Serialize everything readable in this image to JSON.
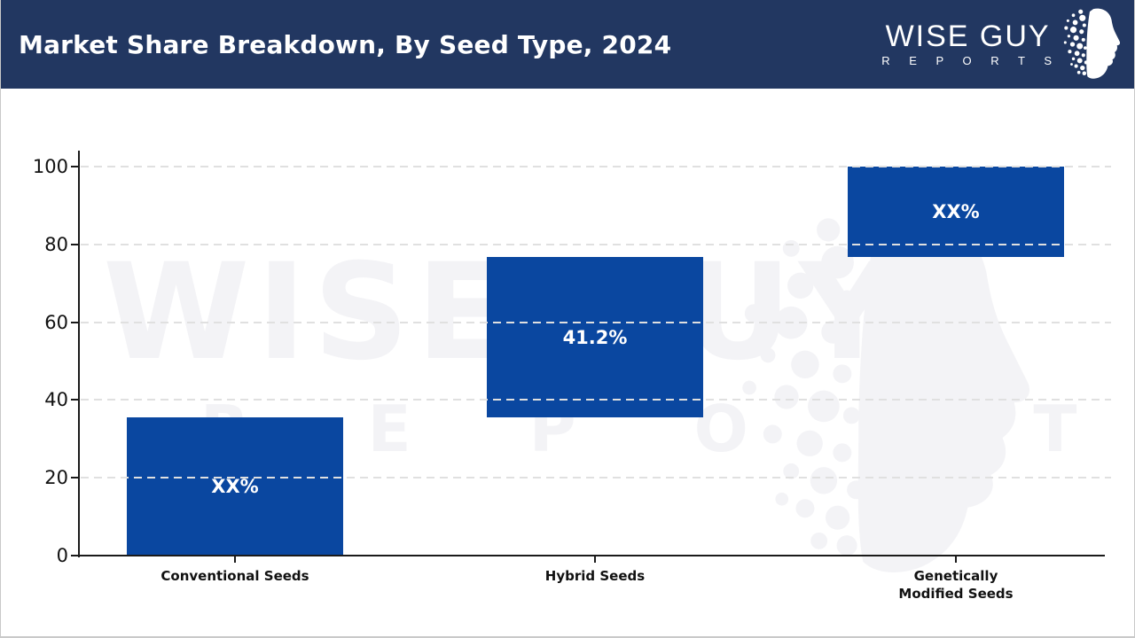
{
  "header": {
    "title": "Market Share Breakdown, By Seed Type, 2024",
    "logo": {
      "name_top": "WISE GUY",
      "name_bottom": "R E P O R T S"
    }
  },
  "watermark": {
    "line1": "WISE GUY",
    "line2": "R E P O R T S"
  },
  "colors": {
    "header_bg": "#223761",
    "bar": "#0a47a0",
    "axis": "#1a1a1a",
    "grid": "#e0e0e0",
    "tick_text": "#111111",
    "bar_label": "#ffffff",
    "watermark": "#f3f3f6"
  },
  "chart_data": {
    "type": "bar",
    "subtype": "waterfall",
    "title": "Market Share Breakdown, By Seed Type, 2024",
    "xlabel": "",
    "ylabel": "",
    "ylim": [
      0,
      100
    ],
    "yticks": [
      0,
      20,
      40,
      60,
      80,
      100
    ],
    "grid": "horizontal-dashed",
    "legend": "none",
    "categories": [
      "Conventional Seeds",
      "Hybrid Seeds",
      "Genetically Modified Seeds"
    ],
    "category_label_lines": [
      [
        "Conventional Seeds"
      ],
      [
        "Hybrid Seeds"
      ],
      [
        "Genetically",
        "Modified Seeds"
      ]
    ],
    "segments": [
      {
        "category": "Conventional Seeds",
        "start": 0,
        "end": 35.5,
        "value": 35.5,
        "label": "XX%"
      },
      {
        "category": "Hybrid Seeds",
        "start": 35.5,
        "end": 76.7,
        "value": 41.2,
        "label": "41.2%"
      },
      {
        "category": "Genetically Modified Seeds",
        "start": 76.8,
        "end": 100,
        "value": 23.2,
        "label": "XX%"
      }
    ]
  }
}
